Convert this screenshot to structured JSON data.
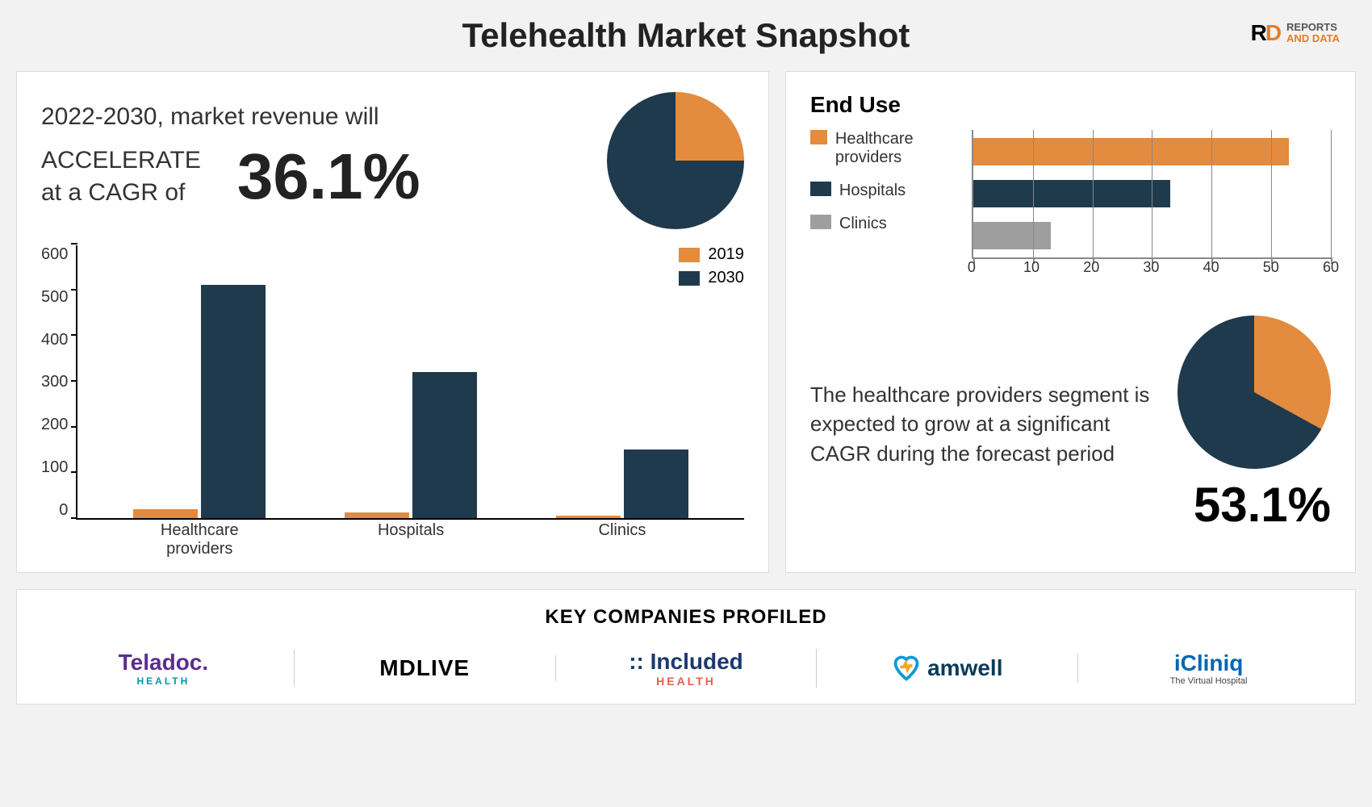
{
  "title": "Telehealth Market Snapshot",
  "logo": {
    "brand_top": "REPORTS",
    "brand_bot": "AND DATA"
  },
  "left_panel": {
    "headline_line1": "2022-2030, market revenue will",
    "headline_line2": "ACCELERATE",
    "headline_line3": "at a CAGR of",
    "cagr": "36.1%",
    "pie": {
      "slice_pct": 25,
      "slice_color": "#e38b3e",
      "rest_color": "#1f3a4d"
    },
    "bar_chart": {
      "type": "grouped-bar",
      "ylim": [
        0,
        600
      ],
      "ytick_step": 100,
      "categories": [
        "Healthcare\nproviders",
        "Hospitals",
        "Clinics"
      ],
      "series": [
        {
          "name": "2019",
          "color": "#e38b3e",
          "values": [
            20,
            12,
            6
          ]
        },
        {
          "name": "2030",
          "color": "#1f3a4d",
          "values": [
            510,
            320,
            150
          ]
        }
      ],
      "label_fontsize": 20
    }
  },
  "right_panel": {
    "end_use_title": "End Use",
    "hbar": {
      "type": "hbar",
      "xlim": [
        0,
        60
      ],
      "xtick_step": 10,
      "items": [
        {
          "label": "Healthcare providers",
          "value": 53,
          "color": "#e38b3e"
        },
        {
          "label": "Hospitals",
          "value": 33,
          "color": "#1f3a4d"
        },
        {
          "label": "Clinics",
          "value": 13,
          "color": "#9e9e9e"
        }
      ]
    },
    "growth_text": "The healthcare providers segment is expected to grow at a significant CAGR during the forecast period",
    "growth_pct": "53.1%",
    "pie2": {
      "slice_pct": 33,
      "slice_color": "#e38b3e",
      "rest_color": "#1f3a4d"
    }
  },
  "companies": {
    "title": "KEY COMPANIES PROFILED",
    "list": [
      {
        "name": "Teladoc.",
        "sub": "HEALTH",
        "class": "teladoc"
      },
      {
        "name": "MDLIVE",
        "sub": "",
        "class": "mdlive"
      },
      {
        "name": "Included",
        "sub": "HEALTH",
        "class": "included"
      },
      {
        "name": "amwell",
        "sub": "",
        "class": "amwell"
      },
      {
        "name": "iCliniq",
        "sub": "The Virtual Hospital",
        "class": "iclinic"
      }
    ]
  },
  "colors": {
    "bg": "#f2f2f2",
    "panel": "#ffffff",
    "orange": "#e38b3e",
    "navy": "#1f3a4d",
    "gray": "#9e9e9e"
  }
}
